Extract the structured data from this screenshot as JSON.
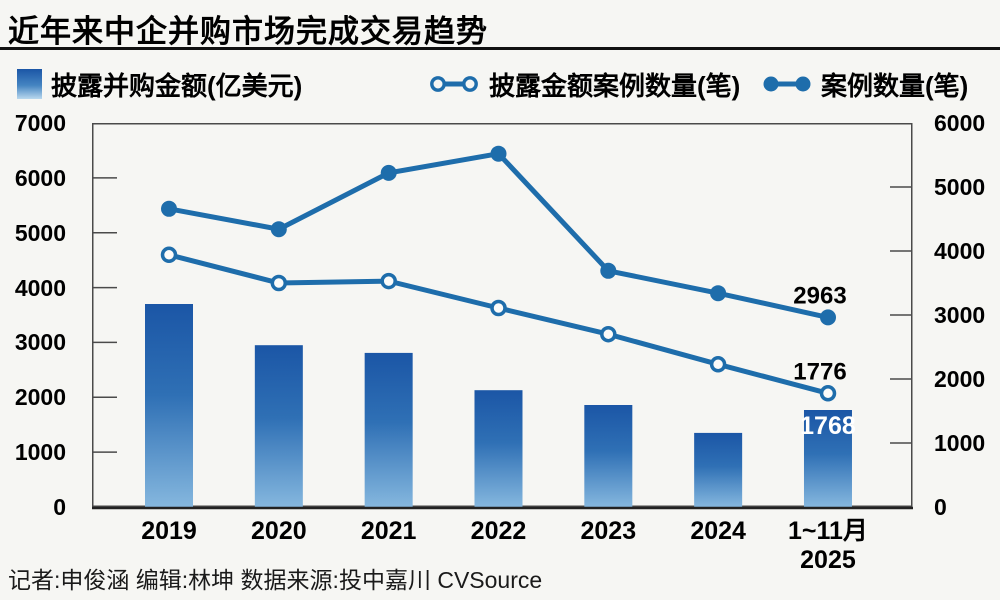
{
  "title": "近年来中企并购市场完成交易趋势",
  "footer": "记者:申俊涵   编辑:林坤   数据来源:投中嘉川 CVSource",
  "colors": {
    "background": "#f6f6f3",
    "accent_blue": "#1e6dab",
    "bar_gradient_top": "#1b56a6",
    "bar_gradient_mid": "#2f70b5",
    "bar_gradient_bottom": "#85b7de",
    "axis_line": "#4a4a4a",
    "baseline": "#222222",
    "annotation_text": "#000000",
    "bar_label_text": "#ffffff"
  },
  "legend": [
    {
      "label": "披露并购金额(亿美元)",
      "marker": "gradient-bar"
    },
    {
      "label": "披露金额案例数量(笔)",
      "marker": "open-circle-line"
    },
    {
      "label": "案例数量(笔)",
      "marker": "filled-circle-line"
    }
  ],
  "chart_data": {
    "type": "bar+line combo",
    "categories": [
      [
        "2019"
      ],
      [
        "2020"
      ],
      [
        "2021"
      ],
      [
        "2022"
      ],
      [
        "2023"
      ],
      [
        "2024"
      ],
      [
        "1~11月",
        "2025"
      ]
    ],
    "left_axis": {
      "label": "披露并购金额(亿美元)",
      "min": 0,
      "max": 7000,
      "ticks": [
        7000,
        6000,
        5000,
        4000,
        3000,
        2000,
        1000,
        0
      ]
    },
    "right_axis": {
      "label": "案例数量(笔)",
      "min": 0,
      "max": 6000,
      "ticks": [
        6000,
        5000,
        4000,
        3000,
        2000,
        1000,
        0
      ]
    },
    "series": [
      {
        "name": "披露并购金额(亿美元)",
        "type": "bar",
        "axis": "left",
        "marker": "none",
        "values": [
          3700,
          2950,
          2810,
          2130,
          1860,
          1350,
          1768
        ]
      },
      {
        "name": "披露金额案例数量(笔)",
        "type": "line",
        "axis": "right",
        "marker": "open",
        "values": [
          3940,
          3500,
          3530,
          3110,
          2700,
          2230,
          1776
        ]
      },
      {
        "name": "案例数量(笔)",
        "type": "line",
        "axis": "right",
        "marker": "filled",
        "values": [
          4660,
          4340,
          5220,
          5520,
          3690,
          3340,
          2963
        ]
      }
    ],
    "annotations": [
      {
        "series": 2,
        "index": 6,
        "text": "2963",
        "placement": "above-point"
      },
      {
        "series": 1,
        "index": 6,
        "text": "1776",
        "placement": "above-point"
      },
      {
        "series": 0,
        "index": 6,
        "text": "1768",
        "placement": "inside-bar-top"
      }
    ],
    "grid": false,
    "legend_position": "top"
  }
}
